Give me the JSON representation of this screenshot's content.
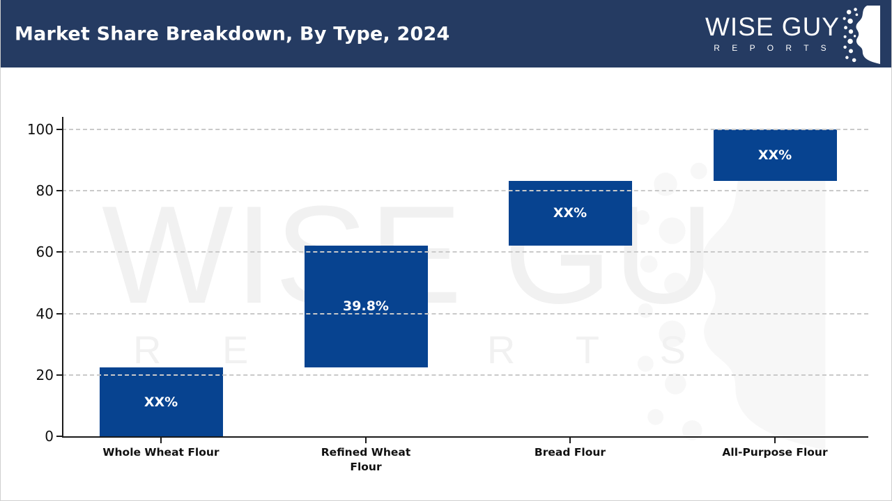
{
  "header": {
    "title": "Market Share Breakdown, By Type, 2024",
    "logo": {
      "name": "WISE GUY",
      "tagline": "R E P O R T S"
    }
  },
  "watermark": {
    "name": "WISE GU",
    "tagline": "R E P O R T S"
  },
  "chart_data": {
    "type": "bar",
    "subtype": "stacked-waterfall",
    "title": "Market Share Breakdown, By Type, 2024",
    "categories": [
      "Whole Wheat Flour",
      "Refined Wheat Flour",
      "Bread Flour",
      "All-Purpose Flour"
    ],
    "series": [
      {
        "category": "Whole Wheat Flour",
        "start": 0,
        "end": 22.4,
        "value": 22.4,
        "value_label": "XX%"
      },
      {
        "category": "Refined Wheat Flour",
        "start": 22.4,
        "end": 62.2,
        "value": 39.8,
        "value_label": "39.8%"
      },
      {
        "category": "Bread Flour",
        "start": 62.2,
        "end": 83.2,
        "value": 21.0,
        "value_label": "XX%"
      },
      {
        "category": "All-Purpose Flour",
        "start": 83.2,
        "end": 100,
        "value": 16.8,
        "value_label": "XX%"
      }
    ],
    "xlabel": "",
    "ylabel": "",
    "ylim": [
      0,
      100
    ],
    "yticks": [
      0,
      20,
      40,
      60,
      80,
      100
    ],
    "grid": "horizontal-dashed",
    "legend": "none",
    "bar_color": "#074390",
    "bar_label_color": "#ffffff"
  },
  "colors": {
    "header_bg": "#253b62",
    "header_text": "#ffffff",
    "bar": "#074390",
    "axis": "#1a1a1a",
    "gridline": "#c9c9c9",
    "canvas": "#ffffff",
    "watermark": "#f1f1f1"
  }
}
